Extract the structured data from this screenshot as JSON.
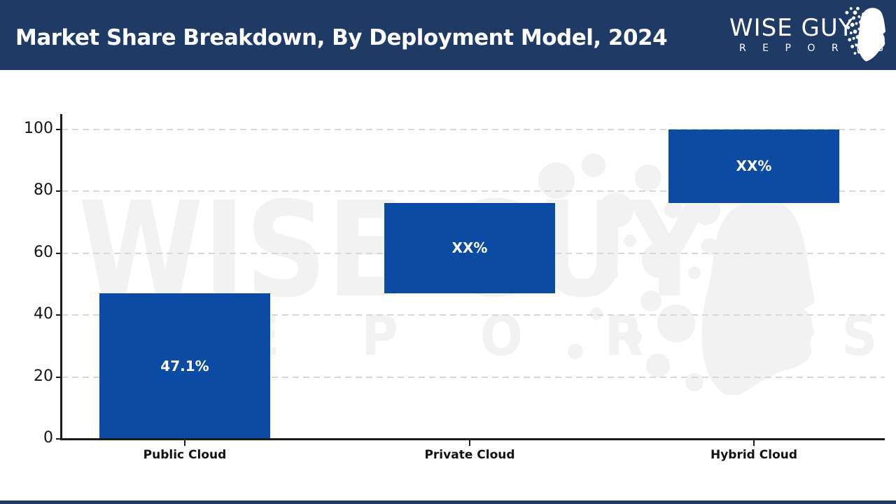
{
  "header": {
    "title": "Market Share Breakdown, By Deployment Model, 2024",
    "logo": {
      "name": "WISE GUY",
      "sub": "R E P O R T S"
    }
  },
  "watermark": {
    "line1": "WISE GUY",
    "line2": "R E P O R T S"
  },
  "chart_data": {
    "type": "bar",
    "variant": "stacked_percentage_waterfall",
    "title": "Market Share Breakdown, By Deployment Model, 2024",
    "categories": [
      "Public Cloud",
      "Private Cloud",
      "Hybrid Cloud"
    ],
    "segments": [
      {
        "category": "Public Cloud",
        "from": 0,
        "to": 47.1,
        "label": "47.1%"
      },
      {
        "category": "Private Cloud",
        "from": 47.1,
        "to": 76.2,
        "label": "XX%"
      },
      {
        "category": "Hybrid Cloud",
        "from": 76.2,
        "to": 100,
        "label": "XX%"
      }
    ],
    "xlabel": "",
    "ylabel": "",
    "ylim": [
      0,
      105
    ],
    "yticks": [
      0,
      20,
      40,
      60,
      80,
      100
    ],
    "grid": "horizontal-dashed",
    "legend": "none",
    "bar_color": "#0c4ba3",
    "bar_label_color": "#ffffff"
  },
  "colors": {
    "header_bg": "#203a66",
    "footer_bg": "#203a66",
    "bar": "#0c4ba3",
    "grid": "#d9d9d9",
    "axis": "#1c1c1c",
    "watermark": "#f2f2f2"
  }
}
